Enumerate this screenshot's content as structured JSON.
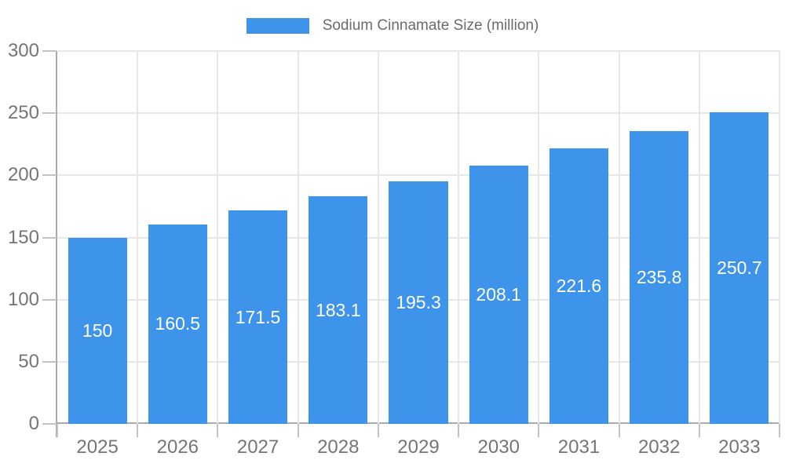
{
  "chart_data": {
    "type": "bar",
    "title": "Sodium Cinnamate Size (million)",
    "legend": [
      "Sodium Cinnamate Size (million)"
    ],
    "legend_position": "top-center",
    "categories": [
      "2025",
      "2026",
      "2027",
      "2028",
      "2029",
      "2030",
      "2031",
      "2032",
      "2033"
    ],
    "values": [
      150,
      160.5,
      171.5,
      183.1,
      195.3,
      208.1,
      221.6,
      235.8,
      250.7
    ],
    "bar_labels": [
      "150",
      "160.5",
      "171.5",
      "183.1",
      "195.3",
      "208.1",
      "221.6",
      "235.8",
      "250.7"
    ],
    "xlabel": "",
    "ylabel": "",
    "ylim": [
      0,
      300
    ],
    "yticks": [
      0,
      50,
      100,
      150,
      200,
      250,
      300
    ],
    "grid": true,
    "colors": {
      "bar": "#3D94EA",
      "bar_label": "#FFFFFF",
      "gridline": "#E7E7E7",
      "axis_line": "#ABABAB",
      "tick": "#C2C2C2",
      "axis_text": "#757575",
      "legend_text": "#6B6B6B",
      "background": "#FFFFFF"
    }
  }
}
